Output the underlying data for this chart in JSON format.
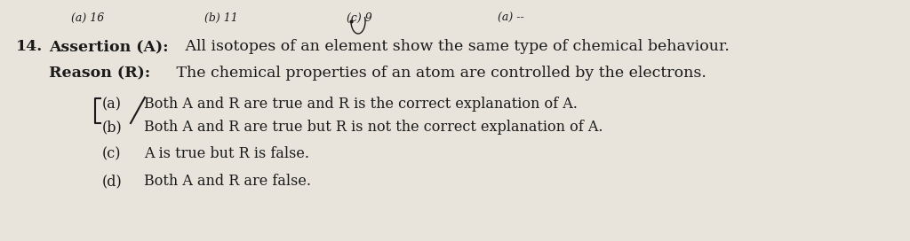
{
  "background_color": "#e8e4dc",
  "text_color": "#1a1a1a",
  "question_number": "14.",
  "assertion_label": "Assertion (A):",
  "assertion_text": " All isotopes of an element show the same type of chemical behaviour.",
  "reason_label": "Reason (R):",
  "reason_text": " The chemical properties of an atom are controlled by the electrons.",
  "options": [
    {
      "label": "(a)",
      "text": "Both A and R are true and R is the correct explanation of A."
    },
    {
      "label": "(b)",
      "text": "Both A and R are true but R is not the correct explanation of A."
    },
    {
      "label": "(c)",
      "text": "A is true but R is false."
    },
    {
      "label": "(d)",
      "text": "Both A and R are false."
    }
  ],
  "top_labels_text": "(a) 16",
  "top_labels_text2": "(b) 11",
  "top_labels_text3": "(c) 9",
  "top_labels_text4": "(a) --",
  "font_size_heading": 12.5,
  "font_size_options": 11.5,
  "font_size_top": 9
}
